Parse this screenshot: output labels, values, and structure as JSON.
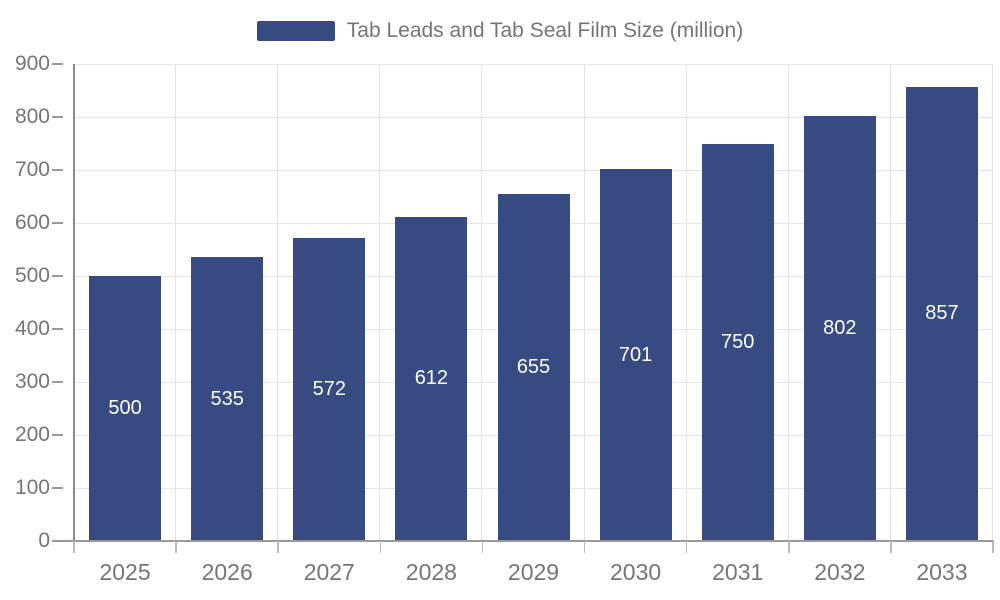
{
  "legend": {
    "label": "Tab Leads and Tab Seal Film Size (million)"
  },
  "chart_data": {
    "type": "bar",
    "title": "Tab Leads and Tab Seal Film Size (million)",
    "categories": [
      "2025",
      "2026",
      "2027",
      "2028",
      "2029",
      "2030",
      "2031",
      "2032",
      "2033"
    ],
    "series": [
      {
        "name": "Tab Leads and Tab Seal Film Size (million)",
        "values": [
          500,
          535,
          572,
          612,
          655,
          701,
          750,
          802,
          857
        ]
      }
    ],
    "value_labels_shown": true,
    "xlabel": "",
    "ylabel": "",
    "ylim": [
      0,
      900
    ],
    "yticks": [
      0,
      100,
      200,
      300,
      400,
      500,
      600,
      700,
      800,
      900
    ],
    "grid": true,
    "legend_position": "top-center",
    "colors": {
      "bar": "#374B82",
      "bar_label": "#FFFFFF",
      "grid_line": "#E4E4E4",
      "axis_line": "#999999",
      "tick_mark": "#BBBBBB",
      "tick_label": "#757575",
      "legend_text": "#757575",
      "background": "#FFFFFF"
    }
  }
}
